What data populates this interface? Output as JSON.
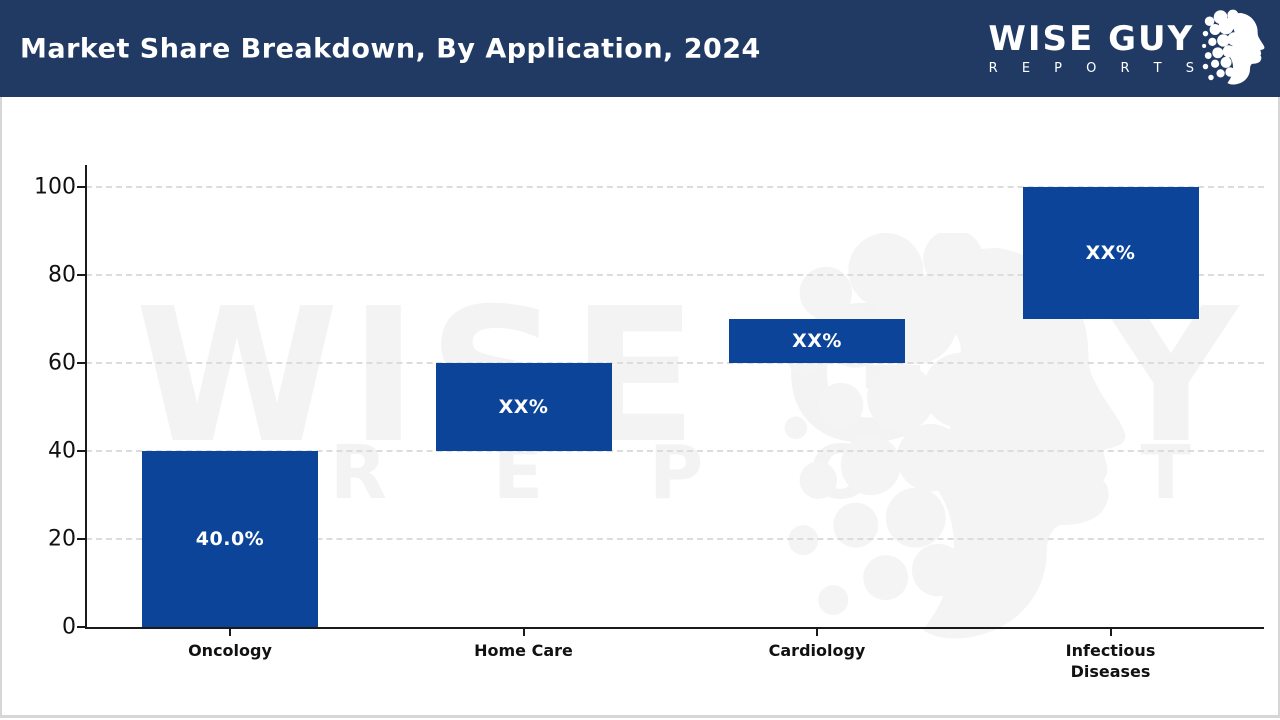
{
  "header": {
    "title": "Market Share Breakdown, By Application, 2024",
    "logo": {
      "name": "WISE GUY",
      "tagline": "R E P O R T S"
    }
  },
  "watermark": {
    "name": "WISE GUY",
    "tagline": "R E P O R T S"
  },
  "chart_data": {
    "type": "bar",
    "variant": "floating-waterfall",
    "title": "Market Share Breakdown, By Application, 2024",
    "categories": [
      "Oncology",
      "Home Care",
      "Cardiology",
      "Infectious Diseases"
    ],
    "segments": [
      {
        "category": "Oncology",
        "start": 0,
        "end": 40,
        "label": "40.0%"
      },
      {
        "category": "Home Care",
        "start": 40,
        "end": 60,
        "label": "XX%"
      },
      {
        "category": "Cardiology",
        "start": 60,
        "end": 70,
        "label": "XX%"
      },
      {
        "category": "Infectious Diseases",
        "start": 70,
        "end": 100,
        "label": "XX%"
      }
    ],
    "ylim": [
      0,
      100
    ],
    "yticks": [
      0,
      20,
      40,
      60,
      80,
      100
    ],
    "xlabel": "",
    "ylabel": "",
    "grid": "horizontal-dashed",
    "legend": "none",
    "bar_color": "#0c4499",
    "bar_label_color": "#ffffff",
    "grid_color": "#dcdcdc",
    "axis_color": "#1a1a1a"
  },
  "colors": {
    "header_bg": "#213a64",
    "page_bg": "#ffffff",
    "watermark": "#f3f3f3",
    "frame_border": "#d6d6d6"
  }
}
